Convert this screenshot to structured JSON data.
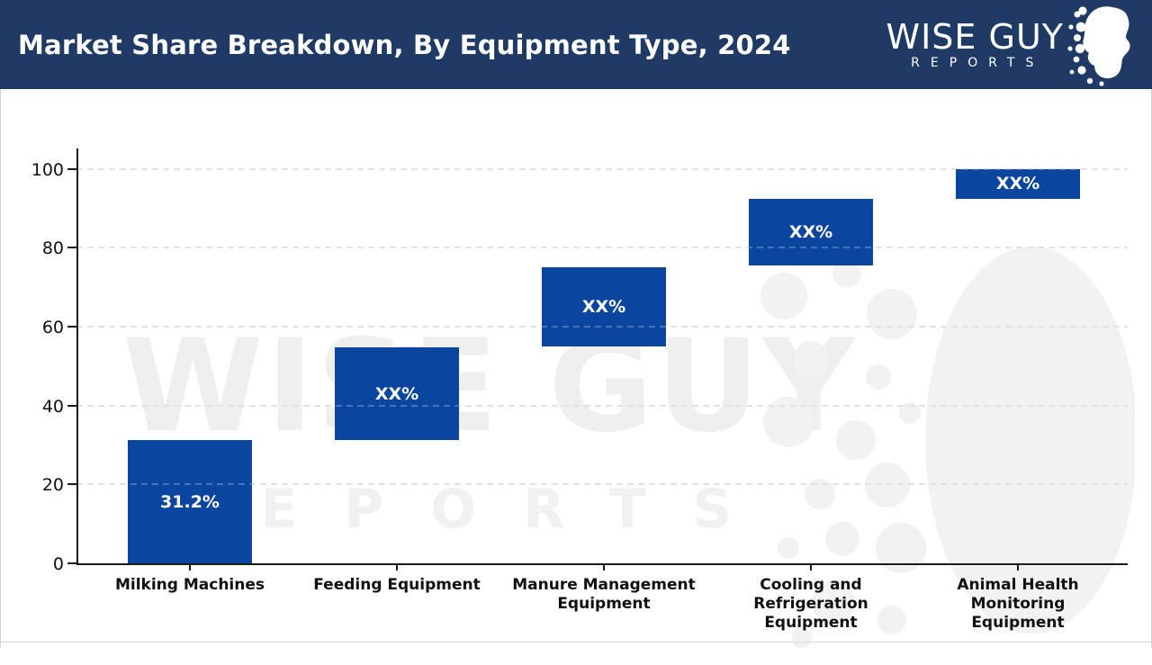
{
  "header": {
    "title": "Market Share Breakdown, By Equipment Type, 2024",
    "logo_line1": "WISE GUY",
    "logo_line2": "REPORTS"
  },
  "watermark": {
    "line1": "WISE GUY",
    "line2": "REPORTS"
  },
  "colors": {
    "header_bg": "#203a66",
    "bar": "#0a45a0",
    "grid": "#d9d9d9",
    "axis": "#1a1a1a",
    "watermark": "#efefef"
  },
  "chart_data": {
    "type": "bar",
    "subtype": "floating-waterfall",
    "title": "Market Share Breakdown, By Equipment Type, 2024",
    "xlabel": "",
    "ylabel": "",
    "ylim": [
      0,
      105
    ],
    "yticks": [
      0,
      20,
      40,
      60,
      80,
      100
    ],
    "grid": "horizontal-dashed",
    "legend": "none",
    "value_unit": "%",
    "categories": [
      "Milking Machines",
      "Feeding Equipment",
      "Manure Management Equipment",
      "Cooling and Refrigeration Equipment",
      "Animal Health Monitoring Equipment"
    ],
    "bars": [
      {
        "category": "Milking Machines",
        "start": 0,
        "end": 31.2,
        "label": "31.2%"
      },
      {
        "category": "Feeding Equipment",
        "start": 31.2,
        "end": 54.7,
        "label": "XX%"
      },
      {
        "category": "Manure Management Equipment",
        "start": 55.0,
        "end": 75.0,
        "label": "XX%"
      },
      {
        "category": "Cooling and Refrigeration Equipment",
        "start": 75.4,
        "end": 92.4,
        "label": "XX%"
      },
      {
        "category": "Animal Health Monitoring Equipment",
        "start": 92.4,
        "end": 99.9,
        "label": "XX%"
      }
    ]
  }
}
